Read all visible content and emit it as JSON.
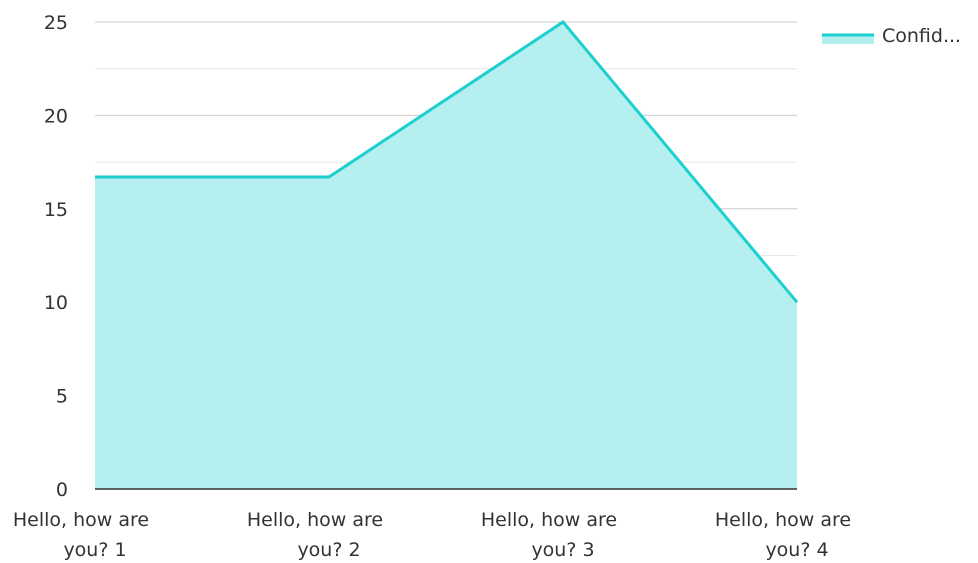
{
  "chart_data": {
    "type": "area",
    "categories": [
      "Hello, how are you? 1",
      "Hello, how are you? 2",
      "Hello, how are you? 3",
      "Hello, how are you? 4"
    ],
    "category_label_lines": [
      [
        "Hello, how are",
        "you? 1"
      ],
      [
        "Hello, how are",
        "you? 2"
      ],
      [
        "Hello, how are",
        "you? 3"
      ],
      [
        "Hello, how are",
        "you? 4"
      ]
    ],
    "series": [
      {
        "name": "Confid...",
        "values": [
          16.7,
          16.7,
          25,
          10
        ]
      }
    ],
    "ylim": [
      0,
      25
    ],
    "y_ticks": [
      0,
      5,
      10,
      15,
      20,
      25
    ],
    "y_tick_labels": [
      "0",
      "5",
      "10",
      "15",
      "20",
      "25"
    ],
    "grid": true,
    "legend_position": "top-right",
    "colors": {
      "line": "#1ecfcf",
      "fill": "#b2eeee",
      "grid": "#d9d9d9",
      "axis": "#333333"
    }
  }
}
